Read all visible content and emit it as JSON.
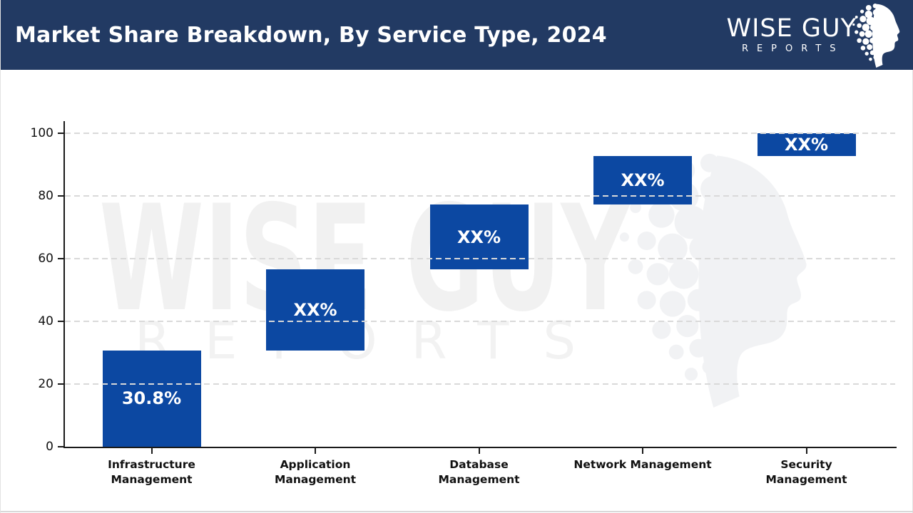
{
  "page": {
    "background": "#ffffff",
    "border_color": "#d9d9d9"
  },
  "header": {
    "background": "#223A63",
    "title": "Market Share Breakdown, By Service Type, 2024",
    "logo": {
      "wordmark": "WISE GUY",
      "subtext": "REPORTS",
      "icon": "wiseguy-face-icon"
    }
  },
  "watermark": {
    "wordmark": "WISE GUY",
    "subtext": "REPORTS",
    "icon": "wiseguy-face-icon"
  },
  "chart_data": {
    "type": "bar",
    "variant": "waterfall",
    "title": "Market Share Breakdown, By Service Type, 2024",
    "xlabel": "",
    "ylabel": "",
    "ylim": [
      0,
      103.9
    ],
    "y_ticks": [
      0,
      20,
      40,
      60,
      80,
      100
    ],
    "grid": "horizontal-dashed",
    "grid_color": "#d9d9d9",
    "bar_color": "#0C48A2",
    "bar_label_color": "#ffffff",
    "axis_color": "#1a1a1a",
    "categories": [
      "Infrastructure Management",
      "Application Management",
      "Database Management",
      "Network Management",
      "Security Management"
    ],
    "category_lines": [
      [
        "Infrastructure",
        "Management"
      ],
      [
        "Application",
        "Management"
      ],
      [
        "Database",
        "Management"
      ],
      [
        "Network Management"
      ],
      [
        "Security",
        "Management"
      ]
    ],
    "segments": [
      {
        "category": "Infrastructure Management",
        "start": 0,
        "end": 30.8,
        "label": "30.8%"
      },
      {
        "category": "Application Management",
        "start": 30.8,
        "end": 56.6,
        "label": "XX%"
      },
      {
        "category": "Database Management",
        "start": 56.6,
        "end": 77.3,
        "label": "XX%"
      },
      {
        "category": "Network Management",
        "start": 77.3,
        "end": 92.7,
        "label": "XX%"
      },
      {
        "category": "Security Management",
        "start": 92.7,
        "end": 100,
        "label": "XX%"
      }
    ]
  }
}
